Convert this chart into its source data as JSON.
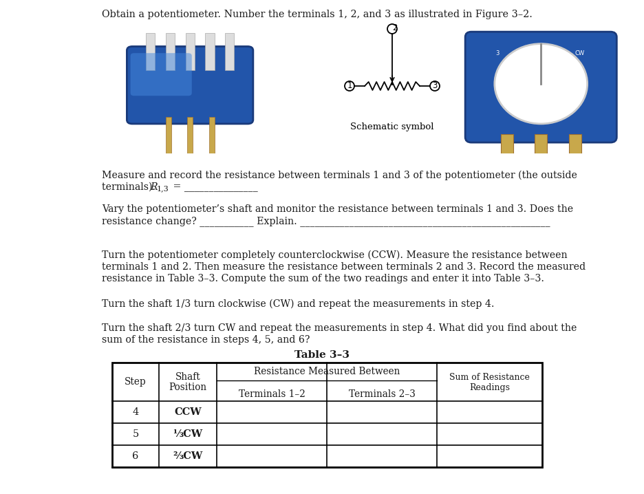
{
  "title_text": "Obtain a potentiometer. Number the terminals 1, 2, and 3 as illustrated in Figure 3–2.",
  "p1l1": "Measure and record the resistance between terminals 1 and 3 of the potentiometer (the outside",
  "p1l2a": "terminals). ",
  "p1l2b": "R",
  "p1l2sub": "1,3",
  "p1l2c": " = _______________",
  "p2l1": "Vary the potentiometer’s shaft and monitor the resistance between terminals 1 and 3. Does the",
  "p2l2": "resistance change? ___________ Explain. ___________________________________________________",
  "p3l1": "Turn the potentiometer completely counterclockwise (CCW). Measure the resistance between",
  "p3l2": "terminals 1 and 2. Then measure the resistance between terminals 2 and 3. Record the measured",
  "p3l3": "resistance in Table 3–3. Compute the sum of the two readings and enter it into Table 3–3.",
  "p4": "Turn the shaft 1/3 turn clockwise (CW) and repeat the measurements in step 4.",
  "p5l1": "Turn the shaft 2/3 turn CW and repeat the measurements in step 4. What did you find about the",
  "p5l2": "sum of the resistance in steps 4, 5, and 6?",
  "table_title": "Table 3–3",
  "resistance_header": "Resistance Measured Between",
  "schematic_label": "Schematic symbol",
  "bg_color": "#ffffff",
  "text_color": "#1a1a1a",
  "rows": [
    [
      "4",
      "CCW"
    ],
    [
      "5",
      "⅓CW"
    ],
    [
      "6",
      "⅔CW"
    ]
  ]
}
